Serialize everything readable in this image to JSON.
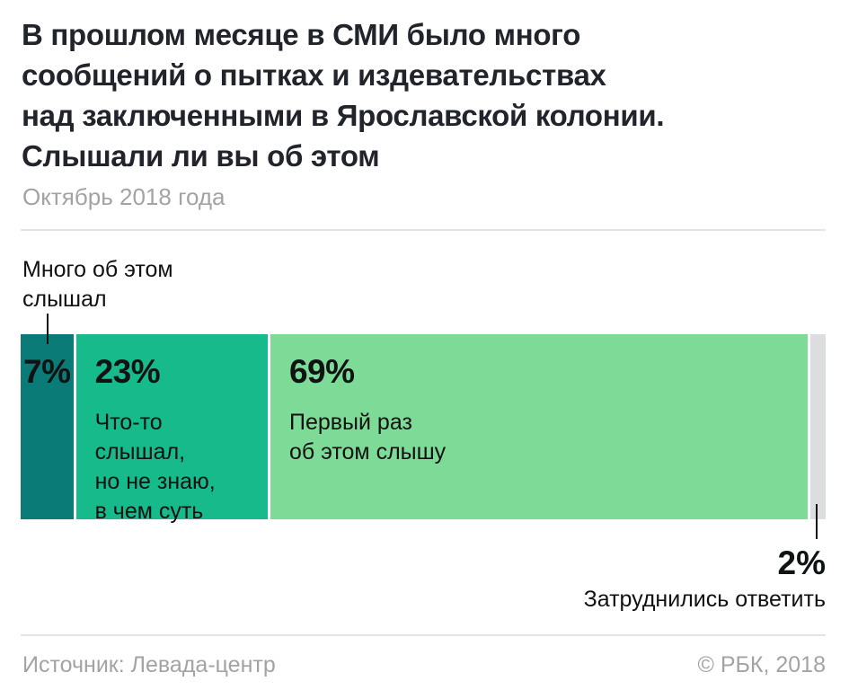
{
  "header": {
    "title_lines": [
      "В прошлом месяце в СМИ было много",
      "сообщений о пытках и издевательствах",
      "над заключенными в Ярославской колонии.",
      "Слышали ли вы об этом"
    ],
    "subtitle": "Октябрь 2018 года"
  },
  "chart_data": {
    "type": "bar",
    "variant": "horizontal-stacked-100",
    "title": "В прошлом месяце в СМИ было много сообщений о пытках и издевательствах над заключенными в Ярославской колонии. Слышали ли вы об этом",
    "subtitle": "Октябрь 2018 года",
    "unit": "%",
    "total": 100,
    "categories": [
      "Много об этом слышал",
      "Что-то слышал, но не знаю, в чем суть",
      "Первый раз об этом слышу",
      "Затруднились ответить"
    ],
    "values": [
      7,
      23,
      69,
      2
    ],
    "grid": false,
    "legend_position": "none",
    "segments": [
      {
        "value": 7,
        "value_label": "7%",
        "label": "Много об этом слышал",
        "label_lines": [
          "Много об этом",
          "слышал"
        ],
        "label_position": "above-bar",
        "color": "#0a7b76"
      },
      {
        "value": 23,
        "value_label": "23%",
        "label": "Что-то слышал, но не знаю, в чем суть",
        "label_lines": [
          "Что-то",
          "слышал,",
          "но не знаю,",
          "в чем суть"
        ],
        "label_position": "inside",
        "color": "#17ba8b"
      },
      {
        "value": 69,
        "value_label": "69%",
        "label": "Первый раз об этом слышу",
        "label_lines": [
          "Первый раз",
          "об этом слышу"
        ],
        "label_position": "inside",
        "color": "#7edb97"
      },
      {
        "value": 2,
        "value_label": "2%",
        "label": "Затруднились ответить",
        "label_lines": [
          "Затруднились ответить"
        ],
        "label_position": "below-bar",
        "color": "#dcddde"
      }
    ]
  },
  "footer": {
    "source": "Источник: Левада-центр",
    "copyright": "© РБК, 2018"
  },
  "colors": {
    "background": "#ffffff",
    "title_text": "#21242a",
    "muted_text": "#a3a3a3",
    "divider": "#e4e4e4",
    "annotation_text": "#111111",
    "pointer_line": "#111111"
  }
}
